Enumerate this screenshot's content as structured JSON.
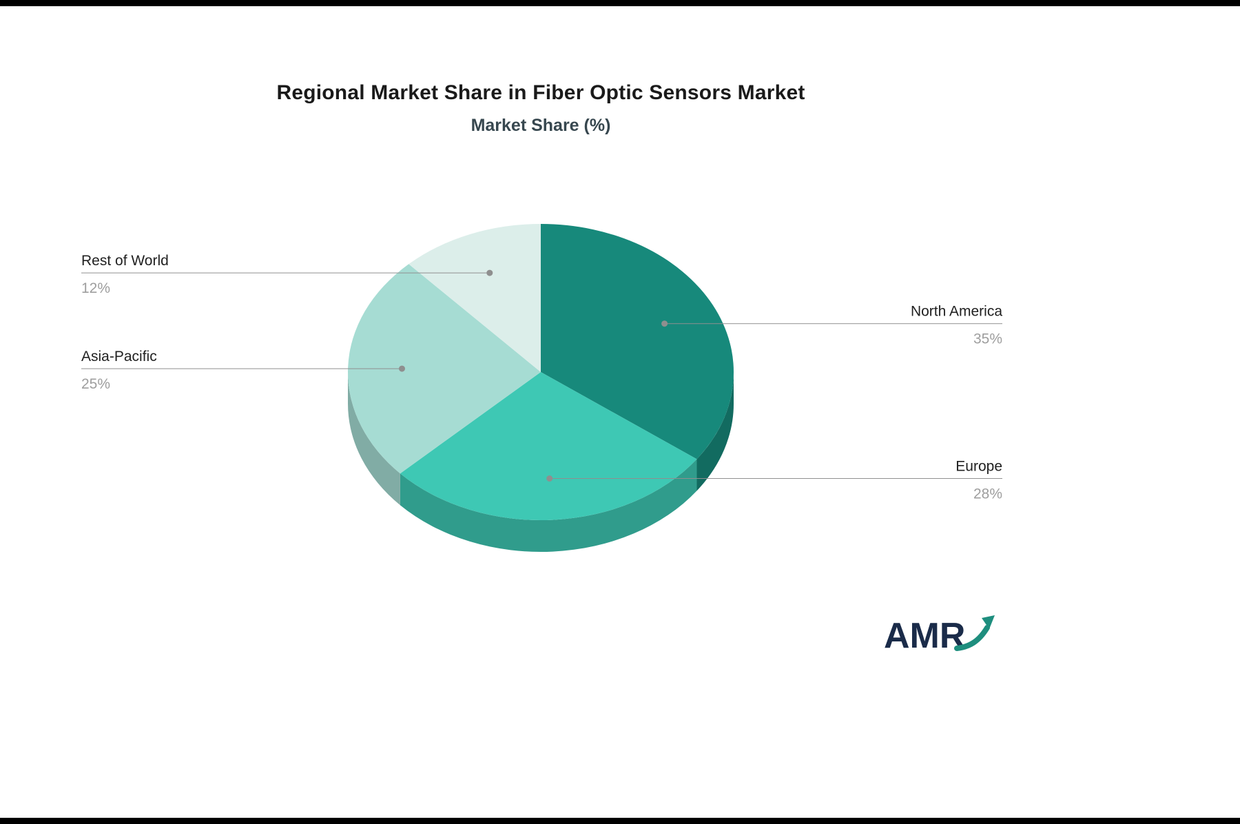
{
  "page": {
    "logo_text": "AMR"
  },
  "chart_data": {
    "type": "pie",
    "title": "Regional Market Share in Fiber Optic Sensors Market",
    "subtitle": "Market Share (%)",
    "unit": "%",
    "direction": "clockwise",
    "start_angle_deg": 0,
    "effect_3d": true,
    "legend_position": "none",
    "label_style": "callout lines with name above and percent below",
    "slices": [
      {
        "label": "North America",
        "value": 35,
        "display_value": "35%",
        "color": "#17897B"
      },
      {
        "label": "Europe",
        "value": 28,
        "display_value": "28%",
        "color": "#3EC8B4"
      },
      {
        "label": "Asia-Pacific",
        "value": 25,
        "display_value": "25%",
        "color": "#A6DCD3"
      },
      {
        "label": "Rest of World",
        "value": 12,
        "display_value": "12%",
        "color": "#DCEEEA"
      }
    ],
    "colors": {
      "label_text": "#212121",
      "value_text": "#9e9e9e",
      "leader_line": "#8f8f8f",
      "logo_arrow": "#1E8E7E"
    }
  }
}
